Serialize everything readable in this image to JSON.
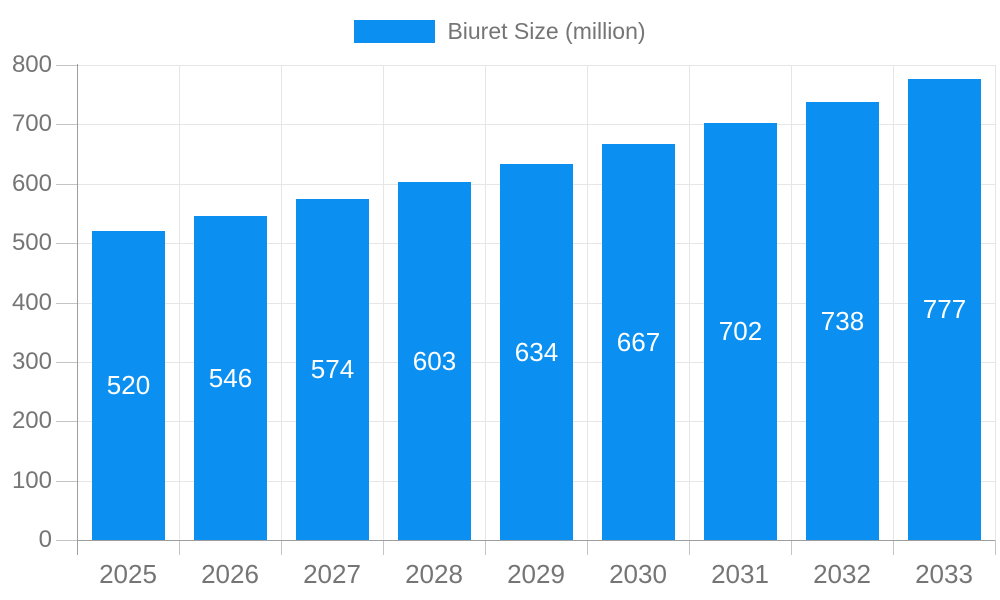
{
  "legend": {
    "label": "Biuret Size (million)"
  },
  "chart_data": {
    "type": "bar",
    "title": "",
    "xlabel": "",
    "ylabel": "",
    "categories": [
      "2025",
      "2026",
      "2027",
      "2028",
      "2029",
      "2030",
      "2031",
      "2032",
      "2033"
    ],
    "series": [
      {
        "name": "Biuret Size (million)",
        "values": [
          520,
          546,
          574,
          603,
          634,
          667,
          702,
          738,
          777
        ]
      }
    ],
    "ylim": [
      0,
      800
    ],
    "ytick_step": 100,
    "grid": true,
    "legend_position": "top",
    "bar_labels_visible": true,
    "bar_label_position": "center-inside"
  },
  "colors": {
    "bar": "#0b90f2",
    "grid": "#e6e6e6",
    "axis": "#9e9e9e",
    "tick": "#c4c4c4",
    "text": "#757575",
    "bar_label": "#ffffff",
    "background": "#ffffff"
  }
}
